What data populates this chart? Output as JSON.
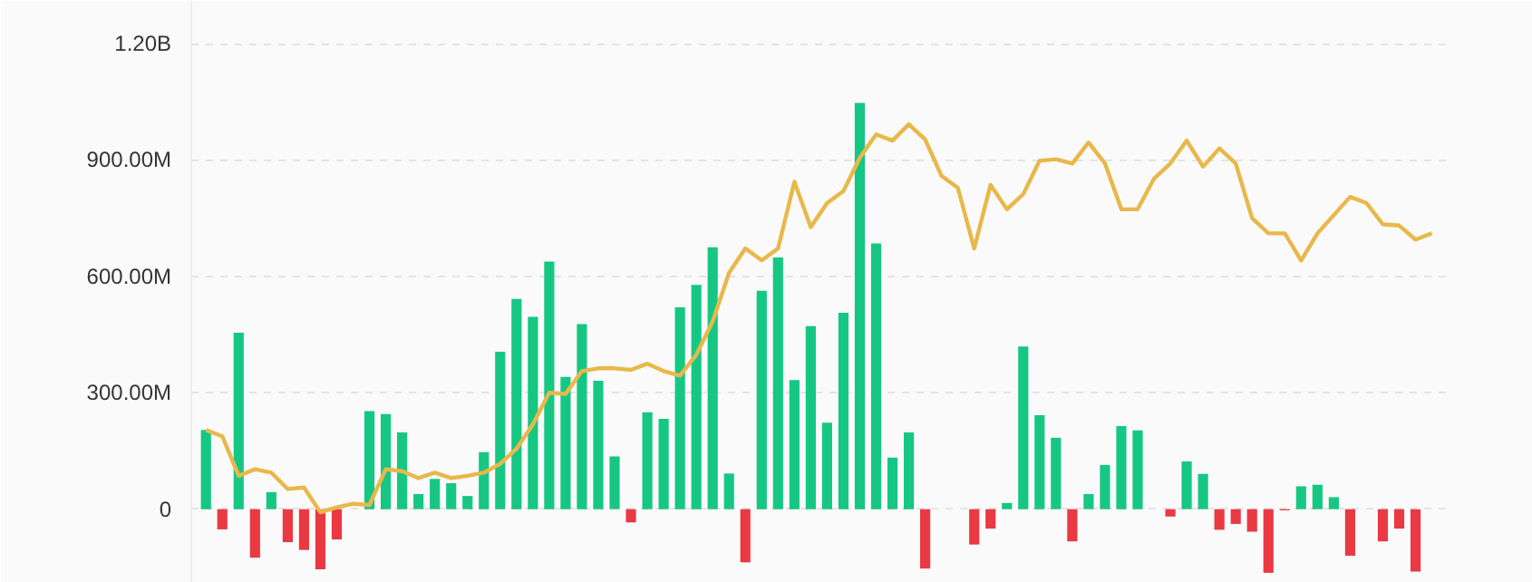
{
  "chart_data": {
    "type": "bar",
    "categories": [
      null,
      null,
      null,
      null,
      null,
      null,
      null,
      null,
      null,
      null,
      null,
      null,
      null,
      null,
      null,
      null,
      null,
      null,
      null,
      null,
      null,
      null,
      null,
      null,
      null,
      null,
      null,
      null,
      null,
      null,
      null,
      null,
      null,
      null,
      null,
      null,
      null,
      null,
      null,
      null,
      null,
      null,
      null,
      null,
      null,
      null,
      null,
      null,
      null,
      null,
      null,
      null,
      null,
      null,
      null,
      null,
      null,
      null,
      null,
      null,
      null,
      null,
      null,
      null,
      null,
      null,
      null,
      null,
      null,
      null,
      null,
      null,
      null,
      null,
      null,
      null
    ],
    "series": [
      {
        "colors": [
          "#16c784",
          "#ea3943",
          "#16c784",
          "#ea3943",
          "#16c784",
          "#ea3943",
          "#ea3943",
          "#ea3943",
          "#ea3943",
          "#16c784",
          "#16c784",
          "#16c784",
          "#16c784",
          "#16c784",
          "#16c784",
          "#16c784",
          "#16c784",
          "#16c784",
          "#16c784",
          "#16c784",
          "#16c784",
          "#16c784",
          "#16c784",
          "#16c784",
          "#16c784",
          "#16c784",
          "#ea3943",
          "#16c784",
          "#16c784",
          "#16c784",
          "#16c784",
          "#16c784",
          "#16c784",
          "#ea3943",
          "#16c784",
          "#16c784",
          "#16c784",
          "#16c784",
          "#16c784",
          "#16c784",
          "#16c784",
          "#16c784",
          "#16c784",
          "#16c784",
          "#ea3943",
          "#ea3943",
          "#ea3943",
          "#ea3943",
          "#ea3943",
          "#16c784",
          "#16c784",
          "#16c784",
          "#16c784",
          "#ea3943",
          "#16c784",
          "#16c784",
          "#16c784",
          "#16c784",
          "#ea3943",
          "#ea3943",
          "#16c784",
          "#16c784",
          "#ea3943",
          "#ea3943",
          "#ea3943",
          "#ea3943",
          "#ea3943",
          "#16c784",
          "#16c784",
          "#16c784",
          "#ea3943",
          "#ea3943",
          "#ea3943",
          "#ea3943",
          "#ea3943",
          "#ea3943"
        ],
        "values": [
          204000000,
          -52000000,
          455000000,
          -125000000,
          44000000,
          -85000000,
          -105000000,
          -155000000,
          -78000000,
          0,
          253000000,
          245000000,
          198000000,
          39000000,
          78000000,
          67000000,
          34000000,
          147000000,
          406000000,
          542000000,
          496000000,
          638000000,
          341000000,
          477000000,
          331000000,
          136000000,
          -34000000,
          250000000,
          233000000,
          520000000,
          578000000,
          675000000,
          92000000,
          -137000000,
          563000000,
          649000000,
          333000000,
          472000000,
          223000000,
          506000000,
          1047000000,
          685000000,
          133000000,
          198000000,
          -153000000,
          null,
          null,
          -91000000,
          -50000000,
          16000000,
          419000000,
          242000000,
          184000000,
          -83000000,
          39000000,
          114000000,
          214000000,
          203000000,
          null,
          -19000000,
          123000000,
          91000000,
          -53000000,
          -38000000,
          -58000000,
          -164000000,
          -3000000,
          59000000,
          63000000,
          31000000,
          -120000000,
          null,
          -83000000,
          -50000000,
          -161000000,
          null
        ]
      },
      {
        "type": "line",
        "color": "#e8b84a",
        "values": [
          204000000,
          188000000,
          86000000,
          103000000,
          94000000,
          52000000,
          56000000,
          -8000000,
          5000000,
          14000000,
          11000000,
          103000000,
          98000000,
          80000000,
          94000000,
          80000000,
          86000000,
          94000000,
          117000000,
          156000000,
          219000000,
          300000000,
          297000000,
          356000000,
          363000000,
          363000000,
          359000000,
          375000000,
          356000000,
          344000000,
          398000000,
          484000000,
          609000000,
          672000000,
          641000000,
          672000000,
          844000000,
          727000000,
          789000000,
          820000000,
          906000000,
          966000000,
          950000000,
          992000000,
          953000000,
          859000000,
          828000000,
          672000000,
          836000000,
          773000000,
          812000000,
          898000000,
          902000000,
          891000000,
          945000000,
          891000000,
          773000000,
          773000000,
          852000000,
          891000000,
          950000000,
          883000000,
          930000000,
          891000000,
          750000000,
          711000000,
          711000000,
          641000000,
          711000000,
          758000000,
          805000000,
          789000000,
          734000000,
          731000000,
          695000000,
          711000000
        ]
      }
    ],
    "ylim": [
      -190000000,
      1310000000
    ],
    "yticks": [
      {
        "value": 0,
        "label": "0"
      },
      {
        "value": 300000000,
        "label": "300.00M"
      },
      {
        "value": 600000000,
        "label": "600.00M"
      },
      {
        "value": 900000000,
        "label": "900.00M"
      },
      {
        "value": 1200000000,
        "label": "1.20B"
      }
    ],
    "grid": "y",
    "tick_labels": "y",
    "line_style": "solid",
    "marker": "none"
  }
}
